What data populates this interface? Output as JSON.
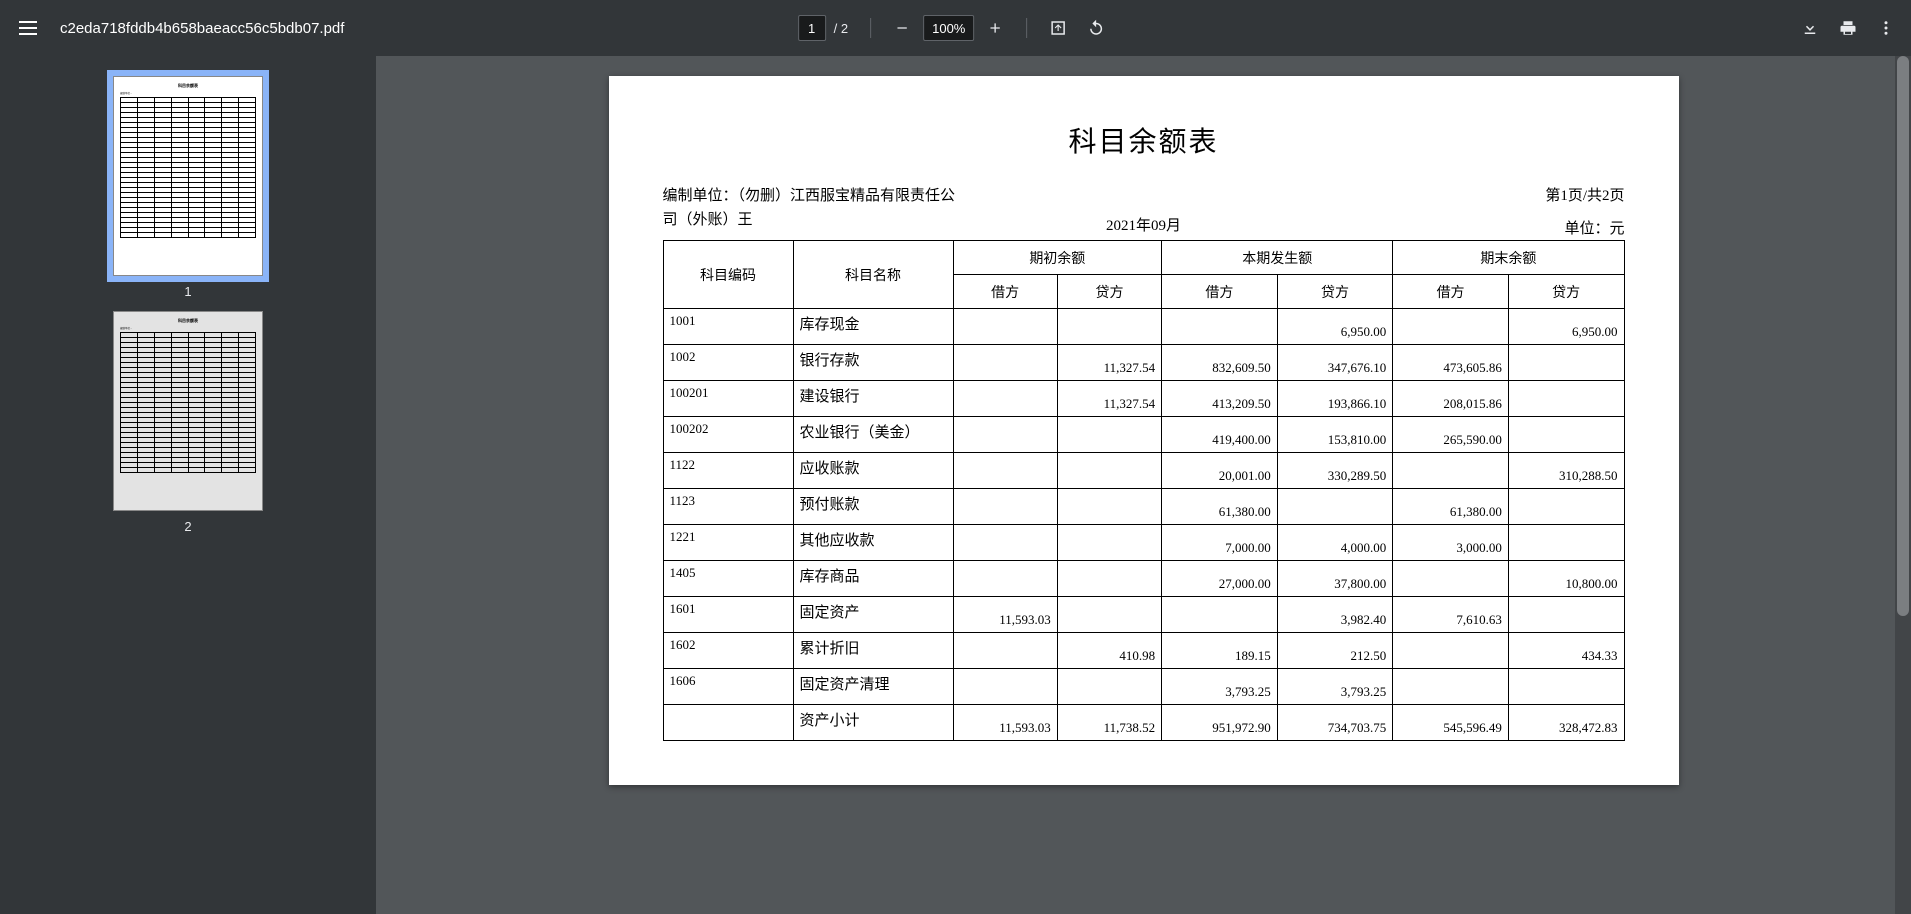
{
  "toolbar": {
    "filename": "c2eda718fddb4b658baeacc56c5bdb07.pdf",
    "page_current": "1",
    "page_sep": "/",
    "page_total": "2",
    "zoom": "100%"
  },
  "thumbnails": {
    "page1_label": "1",
    "page2_label": "2"
  },
  "document": {
    "title": "科目余额表",
    "org_label": "编制单位：",
    "org_value": "（勿删）江西服宝精品有限责任公司（外账）王",
    "page_info": "第1页/共2页",
    "date": "2021年09月",
    "unit_label": "单位：",
    "unit_value": "元",
    "columns": {
      "code": "科目编码",
      "name": "科目名称",
      "opening": "期初余额",
      "period": "本期发生额",
      "closing": "期末余额",
      "debit": "借方",
      "credit": "贷方"
    },
    "rows": [
      {
        "code": "1001",
        "name": "库存现金",
        "od": "",
        "oc": "",
        "pd": "",
        "pc": "6,950.00",
        "cd": "",
        "cc": "6,950.00"
      },
      {
        "code": "1002",
        "name": "银行存款",
        "od": "",
        "oc": "11,327.54",
        "pd": "832,609.50",
        "pc": "347,676.10",
        "cd": "473,605.86",
        "cc": ""
      },
      {
        "code": "100201",
        "name": "建设银行",
        "od": "",
        "oc": "11,327.54",
        "pd": "413,209.50",
        "pc": "193,866.10",
        "cd": "208,015.86",
        "cc": ""
      },
      {
        "code": "100202",
        "name": "农业银行（美金）",
        "od": "",
        "oc": "",
        "pd": "419,400.00",
        "pc": "153,810.00",
        "cd": "265,590.00",
        "cc": ""
      },
      {
        "code": "1122",
        "name": "应收账款",
        "od": "",
        "oc": "",
        "pd": "20,001.00",
        "pc": "330,289.50",
        "cd": "",
        "cc": "310,288.50"
      },
      {
        "code": "1123",
        "name": "预付账款",
        "od": "",
        "oc": "",
        "pd": "61,380.00",
        "pc": "",
        "cd": "61,380.00",
        "cc": ""
      },
      {
        "code": "1221",
        "name": "其他应收款",
        "od": "",
        "oc": "",
        "pd": "7,000.00",
        "pc": "4,000.00",
        "cd": "3,000.00",
        "cc": ""
      },
      {
        "code": "1405",
        "name": "库存商品",
        "od": "",
        "oc": "",
        "pd": "27,000.00",
        "pc": "37,800.00",
        "cd": "",
        "cc": "10,800.00"
      },
      {
        "code": "1601",
        "name": "固定资产",
        "od": "11,593.03",
        "oc": "",
        "pd": "",
        "pc": "3,982.40",
        "cd": "7,610.63",
        "cc": ""
      },
      {
        "code": "1602",
        "name": "累计折旧",
        "od": "",
        "oc": "410.98",
        "pd": "189.15",
        "pc": "212.50",
        "cd": "",
        "cc": "434.33"
      },
      {
        "code": "1606",
        "name": "固定资产清理",
        "od": "",
        "oc": "",
        "pd": "3,793.25",
        "pc": "3,793.25",
        "cd": "",
        "cc": ""
      },
      {
        "code": "",
        "name": "资产小计",
        "od": "11,593.03",
        "oc": "11,738.52",
        "pd": "951,972.90",
        "pc": "734,703.75",
        "cd": "545,596.49",
        "cc": "328,472.83"
      }
    ]
  }
}
